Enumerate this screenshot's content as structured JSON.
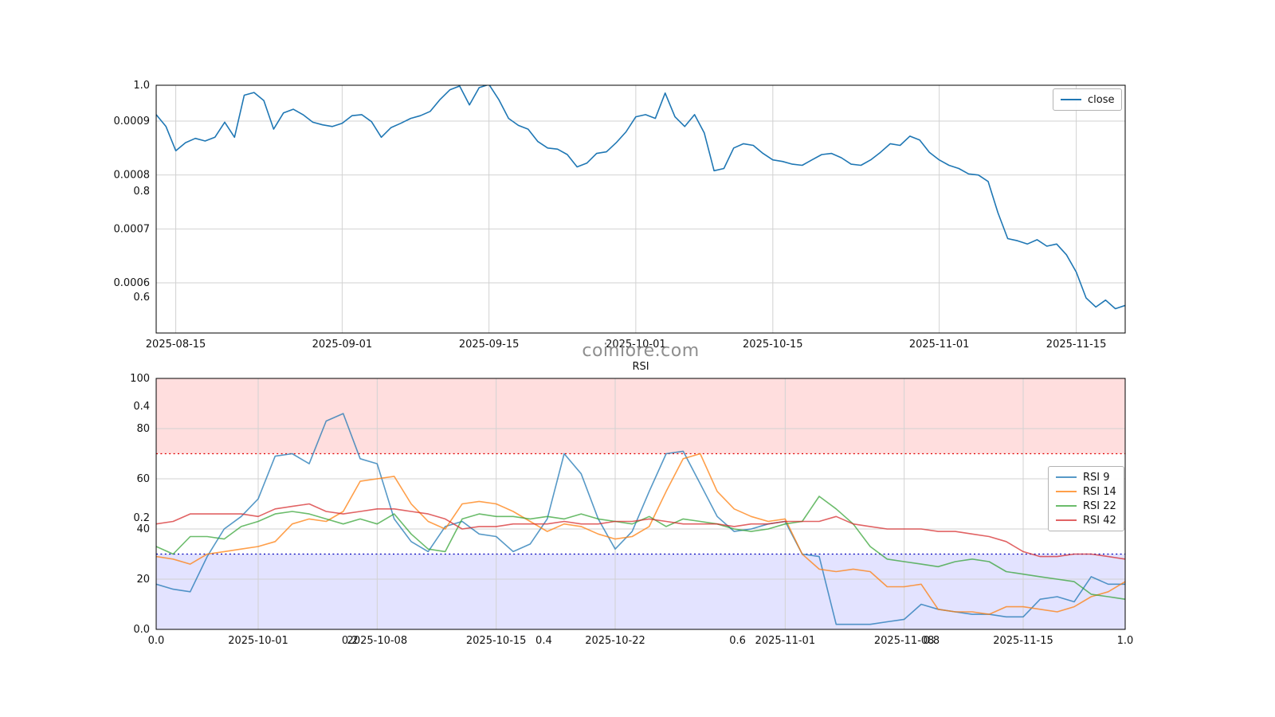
{
  "watermark": "coinlore.com",
  "chart_data": [
    {
      "type": "line",
      "title": "",
      "ylabel": "",
      "xlabel": "",
      "grid": true,
      "legend_position": "upper right",
      "ylim": [
        0.000507,
        0.000966
      ],
      "yticks": [
        {
          "v": 0.0009,
          "label": "0.0009"
        },
        {
          "v": 0.0008,
          "label": "0.0008"
        },
        {
          "v": 0.0007,
          "label": "0.0007"
        },
        {
          "v": 0.0006,
          "label": "0.0006"
        }
      ],
      "twin_yticks": [
        {
          "v": 1.0,
          "label": "1.0"
        },
        {
          "v": 0.8,
          "label": "0.8"
        },
        {
          "v": 0.6,
          "label": "0.6"
        }
      ],
      "xticks": [
        {
          "pos": 2,
          "label": "2025-08-15"
        },
        {
          "pos": 19,
          "label": "2025-09-01"
        },
        {
          "pos": 34,
          "label": "2025-09-15"
        },
        {
          "pos": 49,
          "label": "2025-10-01"
        },
        {
          "pos": 63,
          "label": "2025-10-15"
        },
        {
          "pos": 80,
          "label": "2025-11-01"
        },
        {
          "pos": 94,
          "label": "2025-11-15"
        }
      ],
      "series": [
        {
          "name": "close",
          "color": "#1f77b4",
          "values": [
            0.000912,
            0.00089,
            0.000845,
            0.00086,
            0.000868,
            0.000863,
            0.00087,
            0.000898,
            0.00087,
            0.000948,
            0.000953,
            0.000938,
            0.000885,
            0.000915,
            0.000922,
            0.000912,
            0.000898,
            0.000893,
            0.00089,
            0.000896,
            0.00091,
            0.000912,
            0.000899,
            0.00087,
            0.000888,
            0.000896,
            0.000905,
            0.00091,
            0.000918,
            0.00094,
            0.000958,
            0.000965,
            0.00093,
            0.000962,
            0.000968,
            0.00094,
            0.000905,
            0.000892,
            0.000885,
            0.000862,
            0.00085,
            0.000848,
            0.000838,
            0.000815,
            0.000822,
            0.00084,
            0.000843,
            0.00086,
            0.00088,
            0.000908,
            0.000912,
            0.000905,
            0.000952,
            0.000908,
            0.00089,
            0.000912,
            0.000878,
            0.000808,
            0.000812,
            0.00085,
            0.000858,
            0.000855,
            0.00084,
            0.000828,
            0.000825,
            0.00082,
            0.000818,
            0.000828,
            0.000838,
            0.00084,
            0.000832,
            0.00082,
            0.000818,
            0.000828,
            0.000842,
            0.000858,
            0.000855,
            0.000872,
            0.000865,
            0.000842,
            0.000828,
            0.000818,
            0.000812,
            0.000802,
            0.0008,
            0.000788,
            0.00073,
            0.000682,
            0.000678,
            0.000672,
            0.00068,
            0.000668,
            0.000672,
            0.000652,
            0.00062,
            0.000572,
            0.000555,
            0.000568,
            0.000552,
            0.000558
          ]
        }
      ]
    },
    {
      "type": "line",
      "title": "RSI",
      "ylabel": "",
      "xlabel": "",
      "grid": true,
      "legend_position": "right",
      "ylim": [
        0,
        100
      ],
      "yticks": [
        {
          "v": 100,
          "label": "100"
        },
        {
          "v": 80,
          "label": "80"
        },
        {
          "v": 60,
          "label": "60"
        },
        {
          "v": 40,
          "label": "40"
        },
        {
          "v": 20,
          "label": "20"
        }
      ],
      "twin_yticks": [
        {
          "v": 0.4,
          "label": "0.4"
        },
        {
          "v": 0.2,
          "label": "0.2"
        },
        {
          "v": 0.0,
          "label": "0.0"
        }
      ],
      "xticks": [
        {
          "pos": 6,
          "label": "2025-10-01"
        },
        {
          "pos": 13,
          "label": "2025-10-08"
        },
        {
          "pos": 20,
          "label": "2025-10-15"
        },
        {
          "pos": 27,
          "label": "2025-10-22"
        },
        {
          "pos": 37,
          "label": "2025-11-01"
        },
        {
          "pos": 44,
          "label": "2025-11-08"
        },
        {
          "pos": 51,
          "label": "2025-11-15"
        }
      ],
      "twin_xticks": [
        {
          "f": 0.0,
          "label": "0.0"
        },
        {
          "f": 0.2,
          "label": "0.2"
        },
        {
          "f": 0.4,
          "label": "0.4"
        },
        {
          "f": 0.6,
          "label": "0.6"
        },
        {
          "f": 0.8,
          "label": "0.8"
        },
        {
          "f": 1.0,
          "label": "1.0"
        }
      ],
      "bands": [
        {
          "from": 70,
          "to": 100,
          "color": "rgba(255,0,0,0.13)",
          "name": "overbought-zone"
        },
        {
          "from": 0,
          "to": 30,
          "color": "rgba(0,0,255,0.11)",
          "name": "oversold-zone"
        }
      ],
      "hlines": [
        {
          "v": 70,
          "color": "#e00000",
          "style": "dotted",
          "name": "overbought-threshold"
        },
        {
          "v": 30,
          "color": "#0000bb",
          "style": "dotted",
          "name": "oversold-threshold"
        }
      ],
      "series": [
        {
          "name": "RSI 9",
          "color": "rgba(31,119,180,0.75)",
          "values": [
            18,
            16,
            15,
            29,
            40,
            45,
            52,
            69,
            70,
            66,
            83,
            86,
            68,
            66,
            44,
            35,
            31,
            41,
            43,
            38,
            37,
            31,
            34,
            44,
            70,
            62,
            44,
            32,
            39,
            55,
            70,
            71,
            58,
            45,
            39,
            40,
            42,
            43,
            30,
            29,
            2,
            2,
            2,
            3,
            4,
            10,
            8,
            7,
            6,
            6,
            5,
            5,
            12,
            13,
            11,
            21,
            18,
            18
          ]
        },
        {
          "name": "RSI 14",
          "color": "rgba(255,127,14,0.75)",
          "values": [
            29,
            28,
            26,
            30,
            31,
            32,
            33,
            35,
            42,
            44,
            43,
            47,
            59,
            60,
            61,
            50,
            43,
            40,
            50,
            51,
            50,
            47,
            43,
            39,
            42,
            41,
            38,
            36,
            37,
            41,
            55,
            68,
            70,
            55,
            48,
            45,
            43,
            44,
            30,
            24,
            23,
            24,
            23,
            17,
            17,
            18,
            8,
            7,
            7,
            6,
            9,
            9,
            8,
            7,
            9,
            13,
            15,
            19
          ]
        },
        {
          "name": "RSI 22",
          "color": "rgba(44,160,44,0.7)",
          "values": [
            33,
            30,
            37,
            37,
            36,
            41,
            43,
            46,
            47,
            46,
            44,
            42,
            44,
            42,
            46,
            38,
            32,
            31,
            44,
            46,
            45,
            45,
            44,
            45,
            44,
            46,
            44,
            43,
            42,
            45,
            41,
            44,
            43,
            42,
            40,
            39,
            40,
            42,
            43,
            53,
            48,
            42,
            33,
            28,
            27,
            26,
            25,
            27,
            28,
            27,
            23,
            22,
            21,
            20,
            19,
            14,
            13,
            12
          ]
        },
        {
          "name": "RSI 42",
          "color": "rgba(214,39,40,0.72)",
          "values": [
            42,
            43,
            46,
            46,
            46,
            46,
            45,
            48,
            49,
            50,
            47,
            46,
            47,
            48,
            48,
            47,
            46,
            44,
            40,
            41,
            41,
            42,
            42,
            42,
            43,
            42,
            42,
            43,
            43,
            44,
            43,
            42,
            42,
            42,
            41,
            42,
            42,
            43,
            43,
            43,
            45,
            42,
            41,
            40,
            40,
            40,
            39,
            39,
            38,
            37,
            35,
            31,
            29,
            29,
            30,
            30,
            29,
            28
          ]
        }
      ]
    }
  ]
}
